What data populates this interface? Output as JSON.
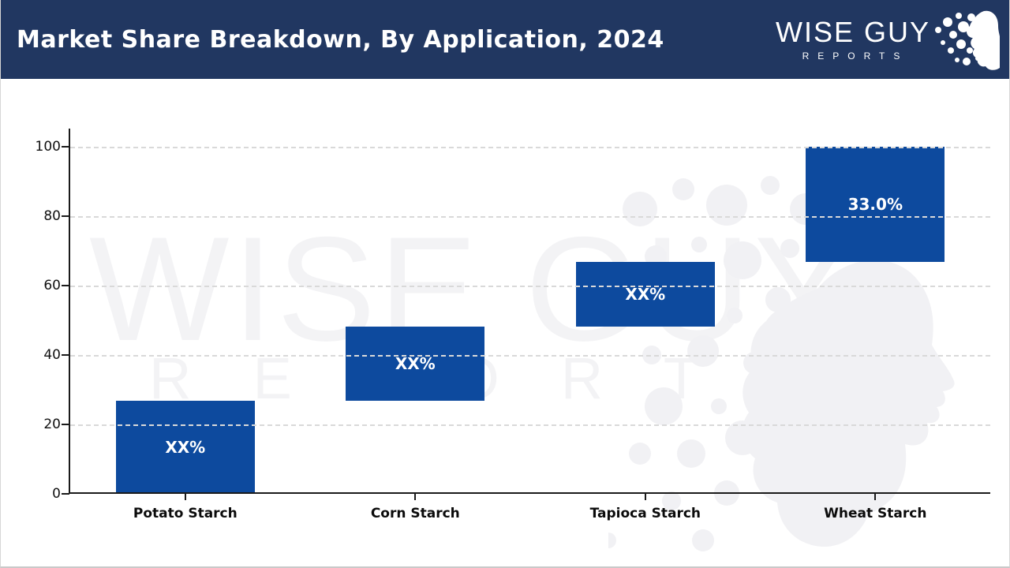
{
  "header": {
    "title": "Market Share Breakdown, By Application, 2024",
    "logo": {
      "line1": "WISE GUY",
      "line2": "REPORTS"
    }
  },
  "watermark": {
    "line1": "WISE GUY",
    "line2": "REPORTS"
  },
  "colors": {
    "header_bg": "#213761",
    "bar": "#0d4a9e",
    "grid": "#d9d9d9",
    "axis": "#1a1a1a",
    "watermark": "#f3f3f5",
    "title_text": "#ffffff",
    "bar_label_text": "#ffffff"
  },
  "chart_data": {
    "type": "bar",
    "subtype": "floating-waterfall",
    "title": "Market Share Breakdown, By Application, 2024",
    "categories": [
      "Potato Starch",
      "Corn Starch",
      "Tapioca Starch",
      "Wheat Starch"
    ],
    "segments": [
      {
        "category": "Potato Starch",
        "start": 0,
        "end": 26.8,
        "value": 26.8,
        "label": "XX%"
      },
      {
        "category": "Corn Starch",
        "start": 26.8,
        "end": 48.2,
        "value": 21.4,
        "label": "XX%"
      },
      {
        "category": "Tapioca Starch",
        "start": 48.2,
        "end": 66.9,
        "value": 18.7,
        "label": "XX%"
      },
      {
        "category": "Wheat Starch",
        "start": 66.9,
        "end": 100,
        "value": 33.0,
        "label": "33.0%"
      }
    ],
    "y_ticks": [
      0,
      20,
      40,
      60,
      80,
      100
    ],
    "ylim": [
      0,
      105
    ],
    "xlabel": "",
    "ylabel": "",
    "grid": "horizontal-dashed",
    "legend": "none",
    "bar_color": "#0d4a9e"
  }
}
